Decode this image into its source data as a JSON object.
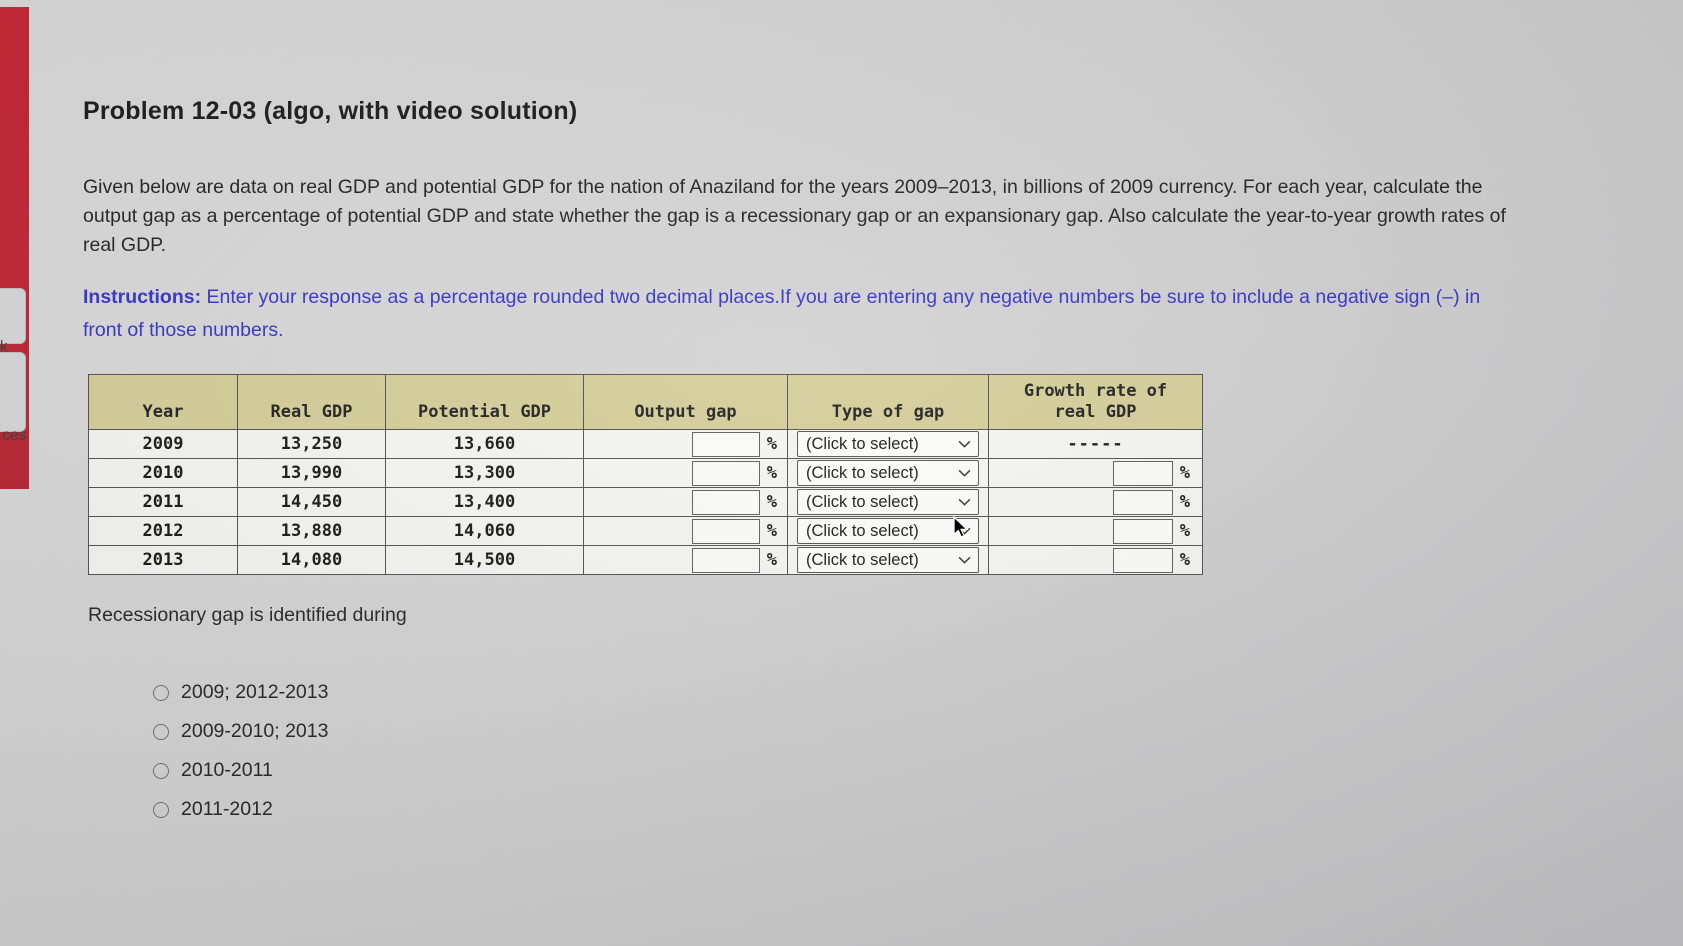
{
  "page": {
    "title": "Problem 12-03 (algo, with video solution)",
    "description": "Given below are data on real GDP and potential GDP for the nation of Anaziland for the years 2009–2013, in billions of 2009 currency. For each year, calculate the output gap as a percentage of potential GDP and state whether the gap is a recessionary gap or an expansionary gap. Also calculate the year-to-year growth rates of real GDP.",
    "instructions_label": "Instructions:",
    "instructions_text": " Enter your response as a percentage rounded two decimal places.If you are entering any negative numbers be sure to include a negative sign (–) in front of those numbers."
  },
  "left_edge": {
    "cut_text_1": "k",
    "cut_text_2": "ces"
  },
  "table": {
    "headers": [
      "Year",
      "Real GDP",
      "Potential GDP",
      "Output gap",
      "Type of gap",
      "Growth rate of\nreal GDP"
    ],
    "percent_sign": "%",
    "select_placeholder": "(Click to select)",
    "no_value_dashes": "-----",
    "rows": [
      {
        "year": "2009",
        "real_gdp": "13,250",
        "potential_gdp": "13,660",
        "output_gap_value": "",
        "type_of_gap": "(Click to select)",
        "growth_rate_value": null
      },
      {
        "year": "2010",
        "real_gdp": "13,990",
        "potential_gdp": "13,300",
        "output_gap_value": "",
        "type_of_gap": "(Click to select)",
        "growth_rate_value": ""
      },
      {
        "year": "2011",
        "real_gdp": "14,450",
        "potential_gdp": "13,400",
        "output_gap_value": "",
        "type_of_gap": "(Click to select)",
        "growth_rate_value": ""
      },
      {
        "year": "2012",
        "real_gdp": "13,880",
        "potential_gdp": "14,060",
        "output_gap_value": "",
        "type_of_gap": "(Click to select)",
        "growth_rate_value": ""
      },
      {
        "year": "2013",
        "real_gdp": "14,080",
        "potential_gdp": "14,500",
        "output_gap_value": "",
        "type_of_gap": "(Click to select)",
        "growth_rate_value": ""
      }
    ]
  },
  "question": {
    "prompt": "Recessionary gap is identified during",
    "options": [
      {
        "label": "2009; 2012-2013",
        "selected": false
      },
      {
        "label": "2009-2010; 2013",
        "selected": false
      },
      {
        "label": "2010-2011",
        "selected": false
      },
      {
        "label": "2011-2012",
        "selected": false
      }
    ]
  },
  "colors": {
    "table_header_bg": "#d3cb95",
    "instructions_blue": "#2e2ec6",
    "left_strip_red": "#c5202f"
  }
}
